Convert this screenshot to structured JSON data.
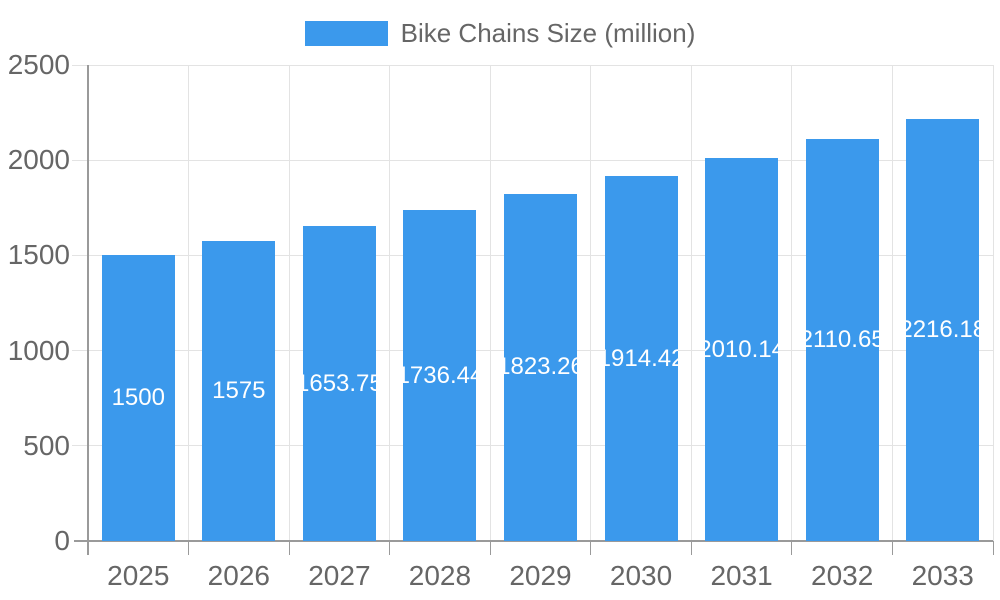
{
  "legend": {
    "label": "Bike Chains Size (million)"
  },
  "colors": {
    "bar": "#3B99EC",
    "grid": "#E3E3E3",
    "axis": "#9A9A9A",
    "tick": "#9A9A9A",
    "text": "#666666",
    "value_label": "#FFFFFF",
    "background": "#FFFFFF"
  },
  "chart_data": {
    "type": "bar",
    "title": "",
    "categories": [
      "2025",
      "2026",
      "2027",
      "2028",
      "2029",
      "2030",
      "2031",
      "2032",
      "2033"
    ],
    "series": [
      {
        "name": "Bike Chains Size (million)",
        "values": [
          1500,
          1575,
          1653.75,
          1736.44,
          1823.26,
          1914.42,
          2010.14,
          2110.65,
          2216.18
        ]
      }
    ],
    "xlabel": "",
    "ylabel": "",
    "ylim": [
      0,
      2500
    ],
    "yticks": [
      0,
      500,
      1000,
      1500,
      2000,
      2500
    ],
    "grid": true,
    "legend_position": "top",
    "value_label_position": "inside-center"
  }
}
